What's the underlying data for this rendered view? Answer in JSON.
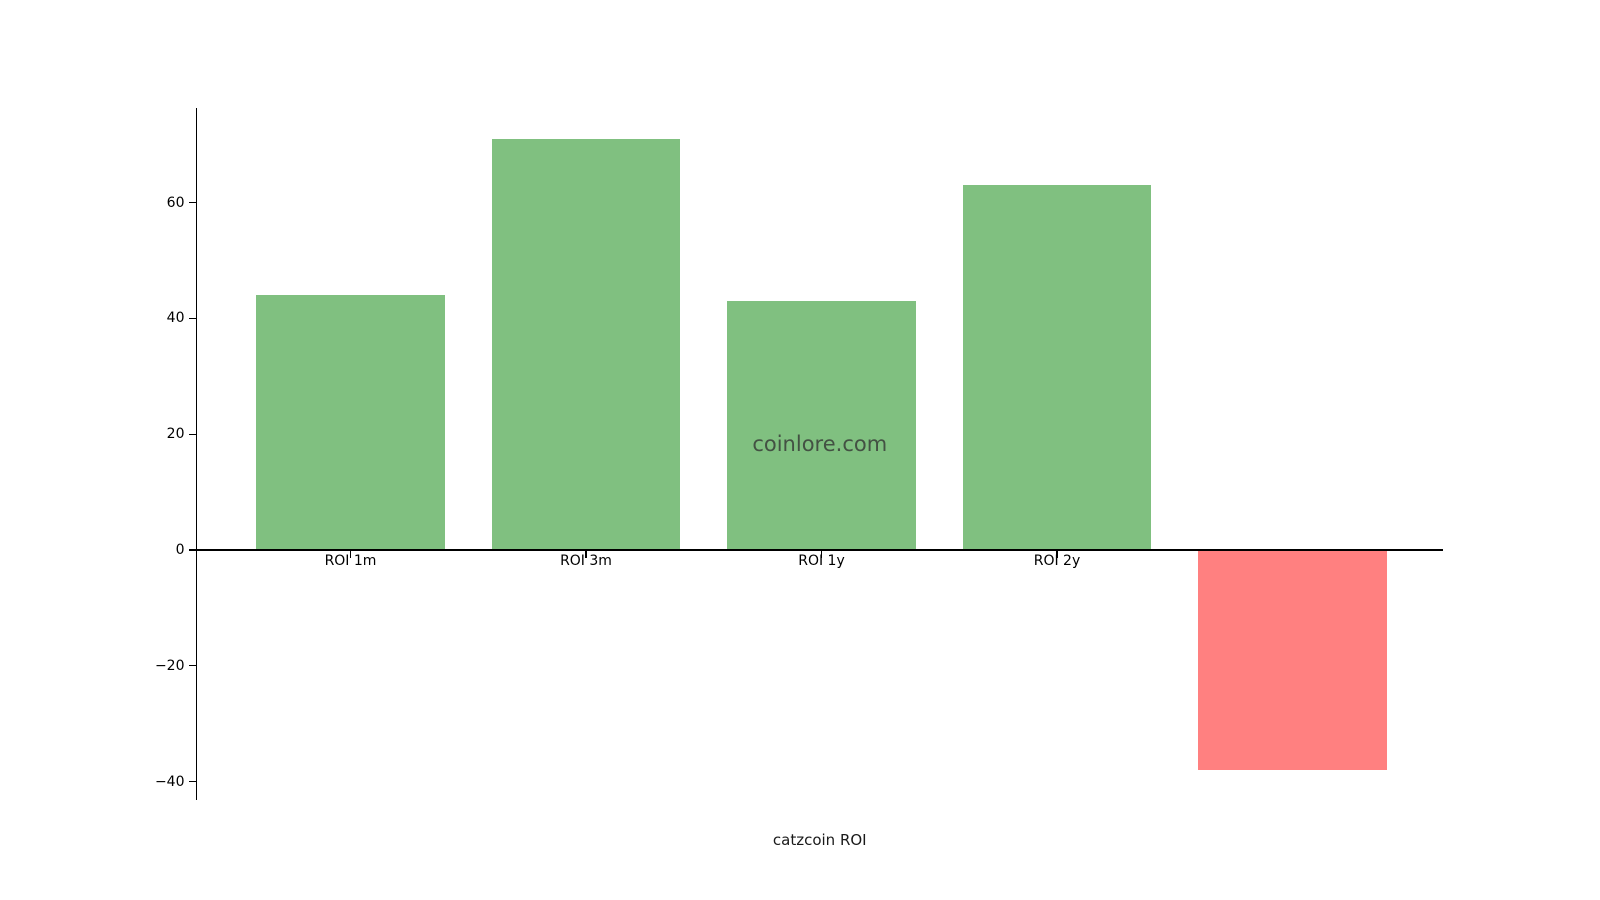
{
  "chart_data": {
    "type": "bar",
    "title": "",
    "xlabel": "catzcoin ROI",
    "ylabel": "",
    "watermark": "coinlore.com",
    "categories": [
      "ROI 1m",
      "ROI 3m",
      "ROI 1y",
      "ROI 2y",
      ""
    ],
    "values": [
      44,
      71,
      43,
      63,
      -38
    ],
    "positive_color": "#80c080",
    "negative_color": "#ff8080",
    "axis_color": "#000000",
    "tick_label_color": "#000000",
    "xlabel_color": "#1a1a1a",
    "watermark_color": "rgba(50,50,50,0.78)",
    "yticks": [
      60,
      40,
      20,
      0,
      -20,
      -40
    ],
    "ylim": [
      -43.2,
      76.3
    ],
    "bar_width_fraction": 0.8,
    "grid": false,
    "legend": null,
    "background": "#ffffff"
  }
}
